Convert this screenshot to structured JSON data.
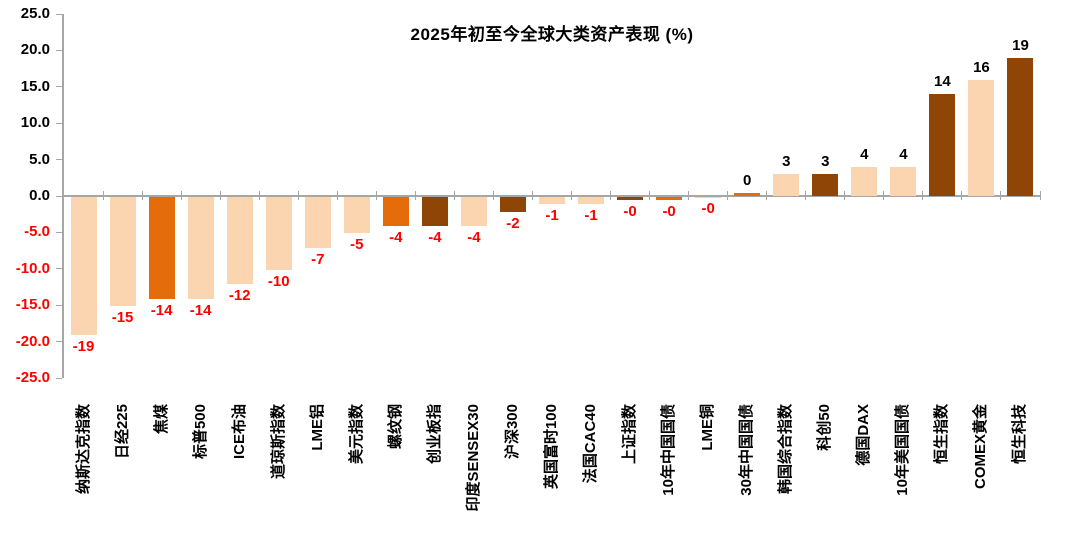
{
  "title": "2025年初至今全球大类资产表现 (%)",
  "colors": {
    "bar_light": "#FAD5AF",
    "bar_orange": "#E46C0A",
    "bar_brown": "#8E4506",
    "label_negative": "#FF0000",
    "label_positive": "#000000",
    "axis": "#A6A6A6"
  },
  "y_axis": {
    "min": -25,
    "max": 25,
    "step": 5,
    "tick_labels": [
      "25.0",
      "20.0",
      "15.0",
      "10.0",
      "5.0",
      "0.0",
      "-5.0",
      "-10.0",
      "-15.0",
      "-20.0",
      "-25.0"
    ]
  },
  "chart_data": {
    "type": "bar",
    "title": "2025年初至今全球大类资产表现 (%)",
    "xlabel": "",
    "ylabel": "",
    "ylim": [
      -25,
      25
    ],
    "grid": false,
    "legend": "none",
    "categories": [
      "纳斯达克指数",
      "日经225",
      "焦煤",
      "标普500",
      "ICE布油",
      "道琼斯指数",
      "LME铝",
      "美元指数",
      "螺纹钢",
      "创业板指",
      "印度SENSEX30",
      "沪深300",
      "英国富时100",
      "法国CAC40",
      "上证指数",
      "10年中国国债",
      "LME铜",
      "30年中国国债",
      "韩国综合指数",
      "科创50",
      "德国DAX",
      "10年美国国债",
      "恒生指数",
      "COMEX黄金",
      "恒生科技"
    ],
    "values": [
      -19,
      -15,
      -14,
      -14,
      -12,
      -10,
      -7,
      -5,
      -4,
      -4,
      -4,
      -2,
      -1,
      -1,
      -0.4,
      -0.4,
      -0.05,
      0.45,
      3,
      3,
      4,
      4,
      14,
      16,
      19
    ],
    "labels": [
      "-19",
      "-15",
      "-14",
      "-14",
      "-12",
      "-10",
      "-7",
      "-5",
      "-4",
      "-4",
      "-4",
      "-2",
      "-1",
      "-1",
      "-0",
      "-0",
      "-0",
      "0",
      "3",
      "3",
      "4",
      "4",
      "14",
      "16",
      "19"
    ],
    "bar_colors": [
      "light",
      "light",
      "orange",
      "light",
      "light",
      "light",
      "light",
      "light",
      "orange",
      "brown",
      "light",
      "brown",
      "light",
      "light",
      "brown",
      "orange",
      "light",
      "orange",
      "light",
      "brown",
      "light",
      "light",
      "brown",
      "light",
      "brown"
    ]
  }
}
